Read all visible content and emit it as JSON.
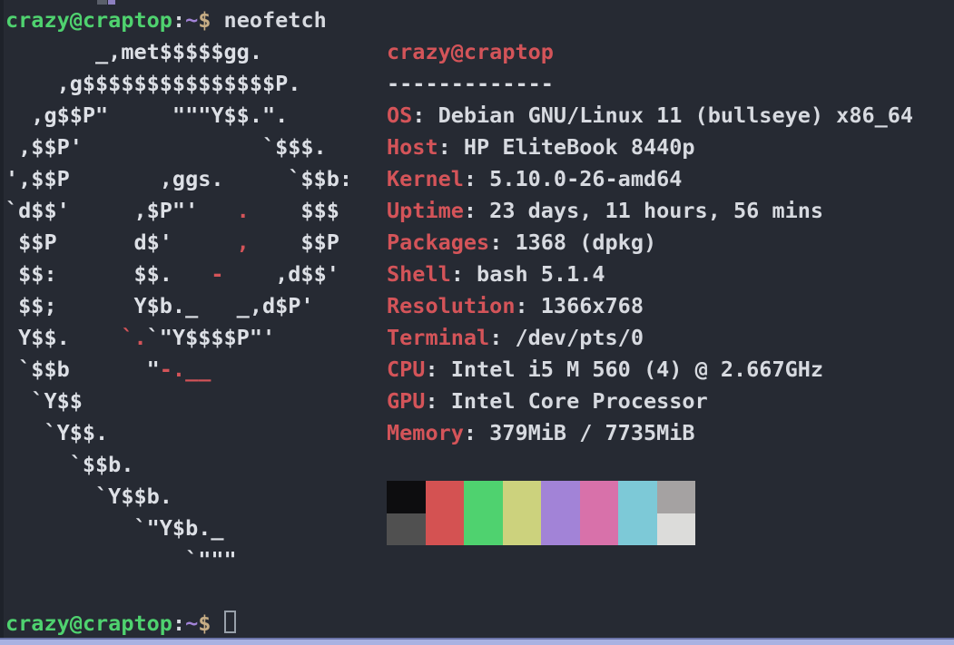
{
  "colors": {
    "background": "#262a33",
    "foreground": "#d7dae0",
    "art_foreground": "#dde0e6",
    "red": "#d45459",
    "green": "#4fd26f",
    "purple": "#a283d7",
    "gold": "#c7ad85",
    "cursor_border": "#98a0aa",
    "bottom_strip": "#a9b2e2"
  },
  "prompt": {
    "user_host": "crazy@craptop",
    "colon": ":",
    "path": "~",
    "dollar": "$",
    "command": " neofetch"
  },
  "bottom_prompt": {
    "user_host": "crazy@craptop",
    "colon": ":",
    "path": "~",
    "dollar": "$",
    "trailing_space": " "
  },
  "ascii_art": {
    "lines": [
      [
        {
          "t": "       _,met$$$$$gg.",
          "c": "art"
        }
      ],
      [
        {
          "t": "    ,g$$$$$$$$$$$$$$$P.",
          "c": "art"
        }
      ],
      [
        {
          "t": "  ,g$$P\"     \"\"\"Y$$.\".",
          "c": "art"
        }
      ],
      [
        {
          "t": " ,$$P'              `$$$.",
          "c": "art"
        }
      ],
      [
        {
          "t": "',$$P       ,ggs.     `$$b:",
          "c": "art"
        }
      ],
      [
        {
          "t": "`d$$'     ,$P\"'   ",
          "c": "art"
        },
        {
          "t": ".",
          "c": "red"
        },
        {
          "t": "    $$$",
          "c": "art"
        }
      ],
      [
        {
          "t": " $$P      d$'     ",
          "c": "art"
        },
        {
          "t": ",",
          "c": "red"
        },
        {
          "t": "    $$P",
          "c": "art"
        }
      ],
      [
        {
          "t": " $$:      $$.   ",
          "c": "art"
        },
        {
          "t": "-",
          "c": "red"
        },
        {
          "t": "    ,d$$'",
          "c": "art"
        }
      ],
      [
        {
          "t": " $$;      Y$b._   _,d$P'",
          "c": "art"
        }
      ],
      [
        {
          "t": " Y$$.    ",
          "c": "art"
        },
        {
          "t": "`.",
          "c": "red"
        },
        {
          "t": "`\"Y$$$$P\"'",
          "c": "art"
        }
      ],
      [
        {
          "t": " `$$b      \"",
          "c": "art"
        },
        {
          "t": "-.__",
          "c": "red"
        }
      ],
      [
        {
          "t": "  `Y$$",
          "c": "art"
        }
      ],
      [
        {
          "t": "   `Y$$.",
          "c": "art"
        }
      ],
      [
        {
          "t": "     `$$b.",
          "c": "art"
        }
      ],
      [
        {
          "t": "       `Y$$b.",
          "c": "art"
        }
      ],
      [
        {
          "t": "          `\"Y$b._",
          "c": "art"
        }
      ],
      [
        {
          "t": "              `\"\"\"",
          "c": "art"
        }
      ]
    ]
  },
  "info": {
    "title": "crazy@craptop",
    "separator": "-------------",
    "entries": [
      {
        "label": "OS",
        "value": "Debian GNU/Linux 11 (bullseye) x86_64"
      },
      {
        "label": "Host",
        "value": "HP EliteBook 8440p"
      },
      {
        "label": "Kernel",
        "value": "5.10.0-26-amd64"
      },
      {
        "label": "Uptime",
        "value": "23 days, 11 hours, 56 mins"
      },
      {
        "label": "Packages",
        "value": "1368 (dpkg)"
      },
      {
        "label": "Shell",
        "value": "bash 5.1.4"
      },
      {
        "label": "Resolution",
        "value": "1366x768"
      },
      {
        "label": "Terminal",
        "value": "/dev/pts/0"
      },
      {
        "label": "CPU",
        "value": "Intel i5 M 560 (4) @ 2.667GHz"
      },
      {
        "label": "GPU",
        "value": "Intel Core Processor"
      },
      {
        "label": "Memory",
        "value": "379MiB / 7735MiB"
      }
    ]
  },
  "palette": {
    "top_row": [
      "#0d0d0f",
      "#d45252",
      "#4fd26f",
      "#ccd27d",
      "#a283d7",
      "#d871aa",
      "#7dc9d7",
      "#a5a2a2"
    ],
    "bottom_row": [
      "#505050",
      "#d45252",
      "#4fd26f",
      "#ccd27d",
      "#a283d7",
      "#d871aa",
      "#7dc9d7",
      "#dcdcda"
    ]
  }
}
